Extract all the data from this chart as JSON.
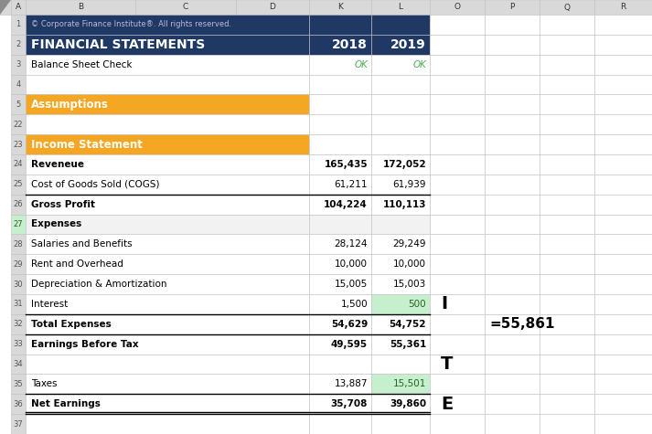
{
  "header_bg": "#1F3864",
  "header_text_color": "#FFFFFF",
  "orange_bg": "#F5A623",
  "orange_text": "#FFFFFF",
  "green_ok": "#4CAF50",
  "green_cell_bg": "#C6EFCE",
  "green_cell_text": "#276221",
  "grid_color": "#C0C0C0",
  "white_bg": "#FFFFFF",
  "row_light_bg": "#F2F2F2",
  "col_header_bg": "#D9D9D9",
  "fig_bg": "#FFFFFF",
  "copyright_text": "© Corporate Finance Institute®. All rights reserved.",
  "rows": [
    {
      "row": 1,
      "label": "© Corporate Finance Institute®. All rights reserved.",
      "val1": "",
      "val2": "",
      "bold": false,
      "header_row": true,
      "spans_all": true
    },
    {
      "row": 2,
      "label": "FINANCIAL STATEMENTS",
      "val1": "2018",
      "val2": "2019",
      "bold": true,
      "header_row": true,
      "spans_all": true
    },
    {
      "row": 3,
      "label": "Balance Sheet Check",
      "val1": "OK",
      "val2": "OK",
      "bold": false,
      "ok_row": true
    },
    {
      "row": 4,
      "label": "",
      "val1": "",
      "val2": "",
      "bold": false
    },
    {
      "row": 5,
      "label": "Assumptions",
      "val1": "",
      "val2": "",
      "bold": true,
      "section_header": true
    },
    {
      "row": 22,
      "label": "",
      "val1": "",
      "val2": "",
      "bold": false
    },
    {
      "row": 23,
      "label": "Income Statement",
      "val1": "",
      "val2": "",
      "bold": true,
      "section_header": true
    },
    {
      "row": 24,
      "label": "Reveneue",
      "val1": "165,435",
      "val2": "172,052",
      "bold": true
    },
    {
      "row": 25,
      "label": "Cost of Goods Sold (COGS)",
      "val1": "61,211",
      "val2": "61,939",
      "bold": false
    },
    {
      "row": 26,
      "label": "Gross Profit",
      "val1": "104,224",
      "val2": "110,113",
      "bold": true,
      "top_border": true
    },
    {
      "row": 27,
      "label": "Expenses",
      "val1": "",
      "val2": "",
      "bold": true,
      "light_bg": true
    },
    {
      "row": 28,
      "label": "Salaries and Benefits",
      "val1": "28,124",
      "val2": "29,249",
      "bold": false
    },
    {
      "row": 29,
      "label": "Rent and Overhead",
      "val1": "10,000",
      "val2": "10,000",
      "bold": false
    },
    {
      "row": 30,
      "label": "Depreciation & Amortization",
      "val1": "15,005",
      "val2": "15,003",
      "bold": false
    },
    {
      "row": 31,
      "label": "Interest",
      "val1": "1,500",
      "val2": "500",
      "bold": false,
      "green_cell2": true
    },
    {
      "row": 32,
      "label": "Total Expenses",
      "val1": "54,629",
      "val2": "54,752",
      "bold": true,
      "top_border": true
    },
    {
      "row": 33,
      "label": "Earnings Before Tax",
      "val1": "49,595",
      "val2": "55,361",
      "bold": true,
      "top_border": true
    },
    {
      "row": 34,
      "label": "",
      "val1": "",
      "val2": "",
      "bold": false
    },
    {
      "row": 35,
      "label": "Taxes",
      "val1": "13,887",
      "val2": "15,501",
      "bold": false,
      "green_cell2": true
    },
    {
      "row": 36,
      "label": "Net Earnings",
      "val1": "35,708",
      "val2": "39,860",
      "bold": true,
      "top_border": true,
      "double_border": true
    },
    {
      "row": 37,
      "label": "",
      "val1": "",
      "val2": "",
      "bold": false
    }
  ]
}
